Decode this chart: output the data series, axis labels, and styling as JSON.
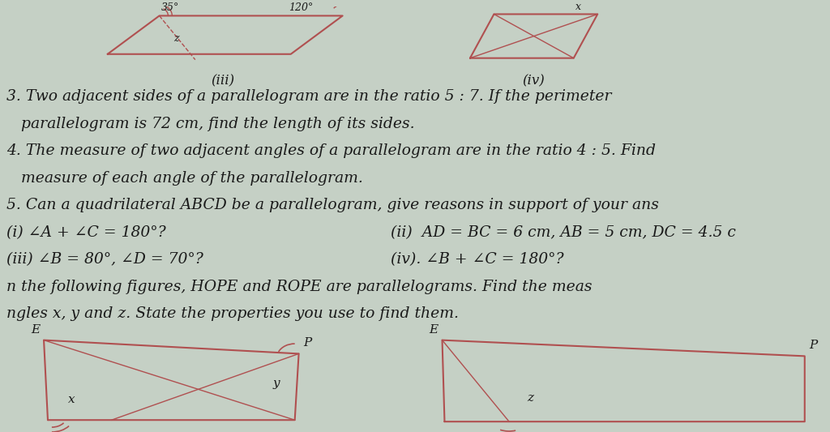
{
  "bg_color": "#c5d0c5",
  "text_color": "#1a1a1a",
  "fig_width": 10.24,
  "fig_height": 5.33,
  "top_label_iii": "(iii)",
  "top_label_iv": "(iv)",
  "line_color": "#b05050",
  "question3": "3. Two adjacent sides of a parallelogram are in the ratio 5 : 7. If the perimeter",
  "question3b": "   parallelogram is 72 cm, find the length of its sides.",
  "question4": "4. The measure of two adjacent angles of a parallelogram are in the ratio 4 : 5. Find",
  "question4b": "   measure of each angle of the parallelogram.",
  "question5": "5. Can a quadrilateral ABCD be a parallelogram, give reasons in support of your ans",
  "q5i": "(i) ∠A + ∠C = 180°?",
  "q5ii": "(ii)  AD = BC = 6 cm, AB = 5 cm, DC = 4.5 c",
  "q5iii": "(iii) ∠B = 80°, ∠D = 70°?",
  "q5iv": "(iv). ∠B + ∠C = 180°?",
  "question6a": "n the following figures, HOPE and ROPE are parallelograms. Find the meas",
  "question6b": "ngles x, y and z. State the properties you use to find them."
}
